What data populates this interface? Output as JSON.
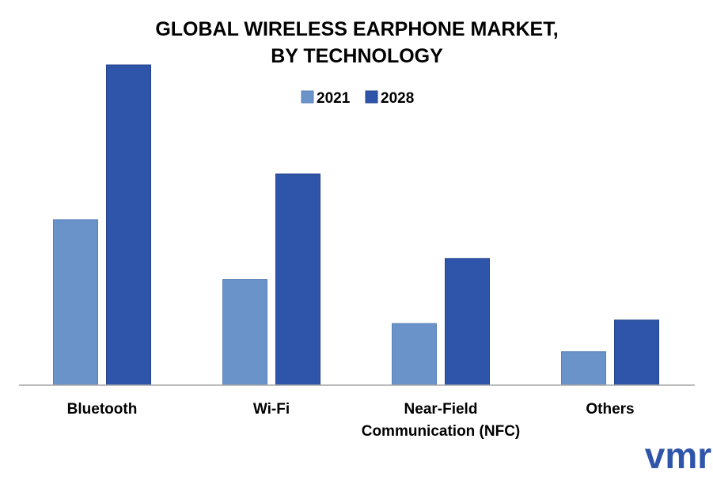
{
  "chart_data": {
    "type": "bar",
    "title": [
      "GLOBAL WIRELESS EARPHONE MARKET,",
      "BY TECHNOLOGY"
    ],
    "categories": [
      [
        "Bluetooth"
      ],
      [
        "Wi-Fi"
      ],
      [
        "Near-Field",
        "Communication (NFC)"
      ],
      [
        "Others"
      ]
    ],
    "series": [
      {
        "name": "2021",
        "color": "#6a93c9",
        "values": [
          4.7,
          3.0,
          1.75,
          0.95
        ]
      },
      {
        "name": "2028",
        "color": "#2f55ab",
        "values": [
          9.1,
          6.0,
          3.6,
          1.85
        ]
      }
    ],
    "ylim": [
      0,
      10
    ],
    "legend_position": "top-center",
    "grid": false,
    "axis_line_color": "#a6a6a6"
  },
  "logo": {
    "text": "vmr",
    "color": "#2f55ab"
  }
}
